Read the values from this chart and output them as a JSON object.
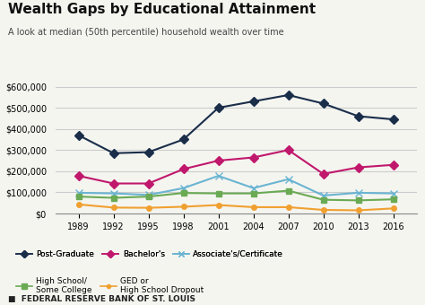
{
  "title": "Wealth Gaps by Educational Attainment",
  "subtitle": "A look at median (50th percentile) household wealth over time",
  "footer": "■  FEDERAL RESERVE BANK OF ST. LOUIS",
  "years": [
    1989,
    1992,
    1995,
    1998,
    2001,
    2004,
    2007,
    2010,
    2013,
    2016
  ],
  "series": [
    {
      "label": "Post-Graduate",
      "color": "#1a2e4a",
      "marker": "D",
      "markersize": 5,
      "values": [
        370000,
        285000,
        290000,
        350000,
        500000,
        530000,
        560000,
        520000,
        460000,
        445000
      ]
    },
    {
      "label": "Bachelor's",
      "color": "#c0186c",
      "marker": "D",
      "markersize": 5,
      "values": [
        178000,
        142000,
        142000,
        210000,
        250000,
        265000,
        300000,
        187000,
        218000,
        230000
      ]
    },
    {
      "label": "Associate's/Certificate",
      "color": "#6ab4d2",
      "marker": "x",
      "markersize": 6,
      "values": [
        98000,
        95000,
        88000,
        120000,
        178000,
        120000,
        162000,
        85000,
        98000,
        95000
      ]
    },
    {
      "label": "High School/\nSome College",
      "color": "#6aaa54",
      "marker": "s",
      "markersize": 5,
      "values": [
        80000,
        74000,
        80000,
        97000,
        95000,
        95000,
        108000,
        65000,
        62000,
        67000
      ]
    },
    {
      "label": "GED or\nHigh School Dropout",
      "color": "#f0a030",
      "marker": "o",
      "markersize": 4,
      "values": [
        43000,
        28000,
        27000,
        32000,
        40000,
        30000,
        30000,
        17000,
        15000,
        24000
      ]
    }
  ],
  "ylim": [
    0,
    620000
  ],
  "yticks": [
    0,
    100000,
    200000,
    300000,
    400000,
    500000,
    600000
  ],
  "background_color": "#f5f5f0",
  "plot_bg_color": "#f5f5f0",
  "grid_color": "#cccccc"
}
